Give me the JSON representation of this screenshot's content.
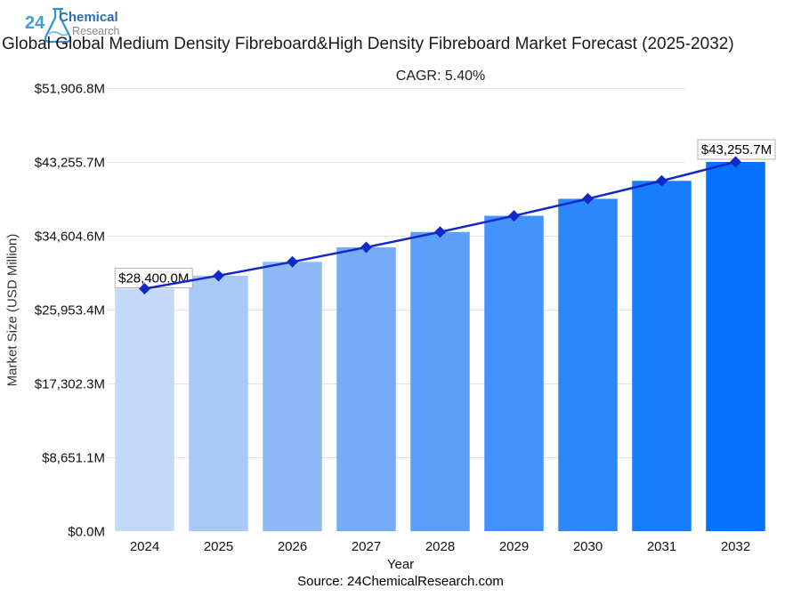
{
  "logo": {
    "number": "24",
    "word1": "Chemical",
    "word2": "Research",
    "colors": {
      "number": "#3da1d9",
      "word1": "#2a6db2",
      "word2": "#8a8a8a",
      "flask": "#2e93d2"
    }
  },
  "header": {
    "title": "Global Global Medium Density Fibreboard&High Density Fibreboard Market Forecast (2025-2032)",
    "subtitle": "CAGR: 5.40%"
  },
  "chart_data": {
    "type": "bar",
    "title": "Global Global Medium Density Fibreboard&High Density Fibreboard Market Forecast (2025-2032)",
    "subtitle": "CAGR: 5.40%",
    "xlabel": "Year",
    "ylabel": "Market Size (USD Million)",
    "ylim": [
      0,
      51906.8
    ],
    "grid": true,
    "legend": "none",
    "categories": [
      "2024",
      "2025",
      "2026",
      "2027",
      "2028",
      "2029",
      "2030",
      "2031",
      "2032"
    ],
    "series": [
      {
        "name": "Market Size (bars)",
        "type": "bar",
        "values": [
          28400.0,
          29933.6,
          31550.0,
          33253.7,
          35049.4,
          36942.1,
          38936.9,
          41039.5,
          43255.7
        ]
      },
      {
        "name": "Trend (line with diamond markers)",
        "type": "line",
        "values": [
          28400.0,
          29933.6,
          31550.0,
          33253.7,
          35049.4,
          36942.1,
          38936.9,
          41039.5,
          43255.7
        ]
      }
    ],
    "yticks": [
      {
        "value": 0,
        "label": "$0.0M"
      },
      {
        "value": 8651.1,
        "label": "$8,651.1M"
      },
      {
        "value": 17302.3,
        "label": "$17,302.3M"
      },
      {
        "value": 25953.4,
        "label": "$25,953.4M"
      },
      {
        "value": 34604.6,
        "label": "$34,604.6M"
      },
      {
        "value": 43255.7,
        "label": "$43,255.7M"
      },
      {
        "value": 51906.8,
        "label": "$51,906.8M"
      }
    ],
    "annotations": [
      {
        "index": 0,
        "label": "$28,400.0M",
        "placement": "above-bar-left"
      },
      {
        "index": 8,
        "label": "$43,255.7M",
        "placement": "above-marker-center"
      }
    ],
    "bar_colors": [
      "#c4d8f7",
      "#a8c8f6",
      "#8dbaf6",
      "#74acf7",
      "#5b9ff8",
      "#4292f9",
      "#2d88fa",
      "#187dfb",
      "#0472fc"
    ],
    "line_color": "#1328c8",
    "grid_color": "#e3e3e3",
    "annotation_border_color": "#b3b3b3",
    "text_color": "#111111"
  },
  "footer": {
    "source": "Source: 24ChemicalResearch.com"
  }
}
